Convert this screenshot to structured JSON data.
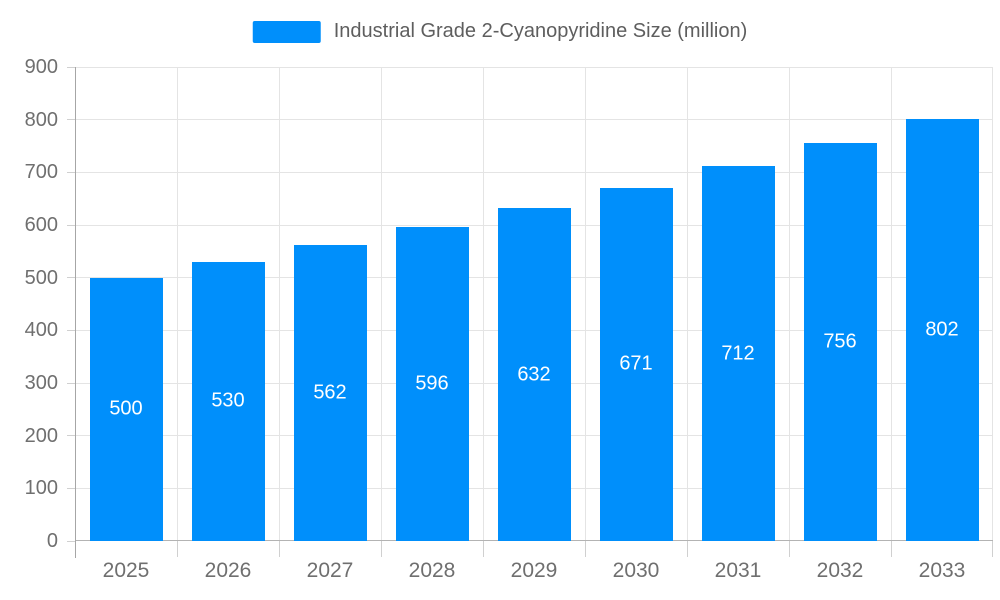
{
  "chart_data": {
    "type": "bar",
    "title": "Industrial Grade 2-Cyanopyridine Size (million)",
    "categories": [
      "2025",
      "2026",
      "2027",
      "2028",
      "2029",
      "2030",
      "2031",
      "2032",
      "2033"
    ],
    "series": [
      {
        "name": "Industrial Grade 2-Cyanopyridine Size (million)",
        "values": [
          500,
          530,
          562,
          596,
          632,
          671,
          712,
          756,
          802
        ]
      }
    ],
    "value_labels": [
      "500",
      "530",
      "562",
      "596",
      "632",
      "671",
      "712",
      "756",
      "802"
    ],
    "xlabel": "",
    "ylabel": "",
    "ylim": [
      0,
      900
    ],
    "ytick_step": 100,
    "ytick_labels": [
      "0",
      "100",
      "200",
      "300",
      "400",
      "500",
      "600",
      "700",
      "800",
      "900"
    ],
    "grid": true,
    "legend_position": "top",
    "bar_color": "#008FFB"
  },
  "colors": {
    "bar": "#008FFB",
    "gridline": "#e4e4e4",
    "axis_line": "#a6a6a6",
    "baseline": "#b3b3b3",
    "tick": "#d0d0d0",
    "axis_label_text": "#6f6f6f",
    "legend_text": "#5e5e5e",
    "value_label_text": "#ffffff",
    "background": "#ffffff"
  }
}
